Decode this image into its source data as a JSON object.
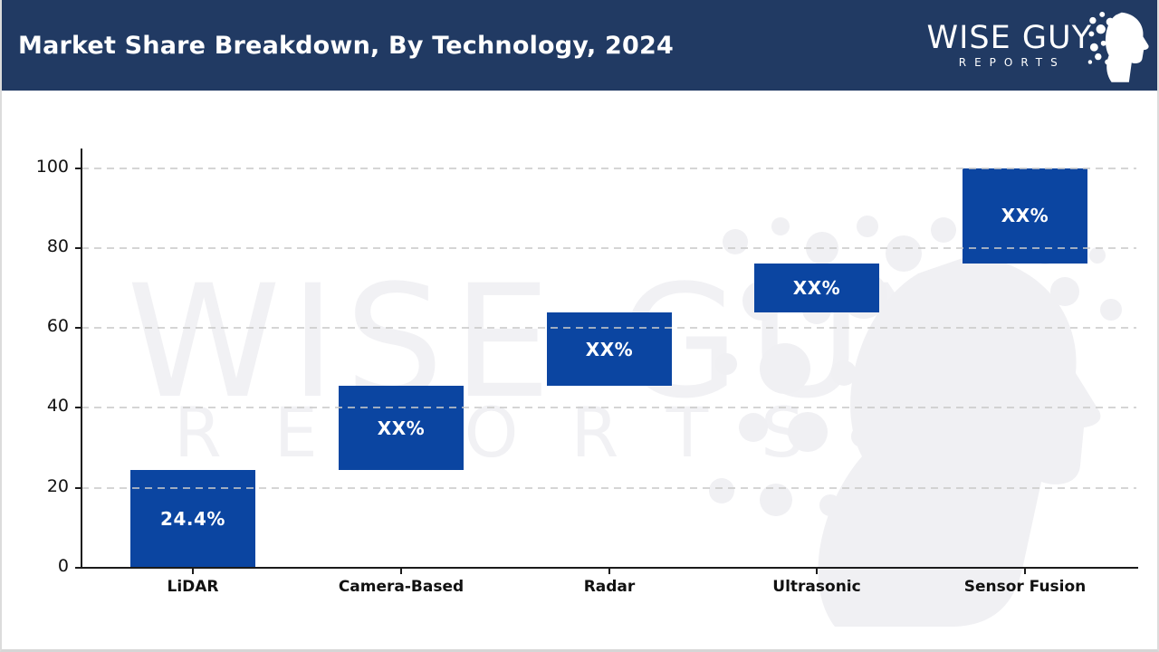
{
  "header": {
    "title": "Market Share Breakdown, By Technology, 2024",
    "logo": {
      "wordmark": "WISE GUY",
      "sub": "REPORTS"
    }
  },
  "watermark": {
    "wordmark": "WISE GUY",
    "sub": "REPORTS"
  },
  "colors": {
    "header_bg": "#213a63",
    "bar": "#0b45a1",
    "grid": "#c9c9c9",
    "axis": "#1b1b1b",
    "watermark": "#f1f1f4",
    "title_text": "#ffffff",
    "bar_label": "#ffffff"
  },
  "chart_data": {
    "type": "bar",
    "variant": "waterfall",
    "title": "Market Share Breakdown, By Technology, 2024",
    "categories": [
      "LiDAR",
      "Camera-Based",
      "Radar",
      "Ultrasonic",
      "Sensor Fusion"
    ],
    "segments": [
      {
        "category": "LiDAR",
        "start": 0,
        "end": 24.4,
        "label": "24.4%"
      },
      {
        "category": "Camera-Based",
        "start": 24.4,
        "end": 45.5,
        "label": "XX%"
      },
      {
        "category": "Radar",
        "start": 45.5,
        "end": 63.8,
        "label": "XX%"
      },
      {
        "category": "Ultrasonic",
        "start": 63.8,
        "end": 76,
        "label": "XX%"
      },
      {
        "category": "Sensor Fusion",
        "start": 76,
        "end": 100,
        "label": "XX%"
      }
    ],
    "xlabel": "",
    "ylabel": "",
    "ylim": [
      0,
      100
    ],
    "yticks": [
      0,
      20,
      40,
      60,
      80,
      100
    ],
    "grid": {
      "horizontal": true,
      "style": "dashed",
      "drawn_over_bars": true
    },
    "legend": null
  }
}
